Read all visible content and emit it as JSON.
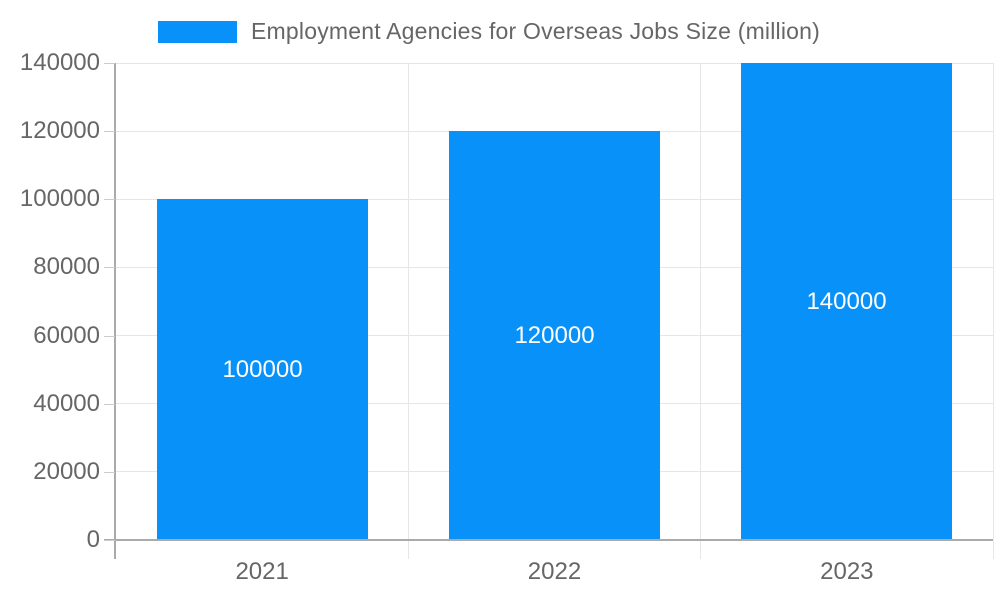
{
  "legend": {
    "label": "Employment Agencies for Overseas Jobs Size (million)"
  },
  "chart_data": {
    "type": "bar",
    "title": "Employment Agencies for Overseas Jobs Size (million)",
    "categories": [
      "2021",
      "2022",
      "2023"
    ],
    "series": [
      {
        "name": "Employment Agencies for Overseas Jobs Size (million)",
        "values": [
          100000,
          120000,
          140000
        ]
      }
    ],
    "bar_value_labels": [
      "100000",
      "120000",
      "140000"
    ],
    "xlabel": "",
    "ylabel": "",
    "ylim": [
      0,
      140000
    ],
    "ytick_values": [
      0,
      20000,
      40000,
      60000,
      80000,
      100000,
      120000,
      140000
    ],
    "ytick_labels": [
      "0",
      "20000",
      "40000",
      "60000",
      "80000",
      "100000",
      "120000",
      "140000"
    ],
    "grid": true,
    "legend_position": "top",
    "colors": {
      "bar": "#0991fa",
      "bar_label_text": "#ffffff",
      "axis_text": "#666666",
      "gridline": "#e6e6e6",
      "axis_line": "#aaaaaa",
      "tick": "#cccccc",
      "background": "#ffffff"
    }
  }
}
